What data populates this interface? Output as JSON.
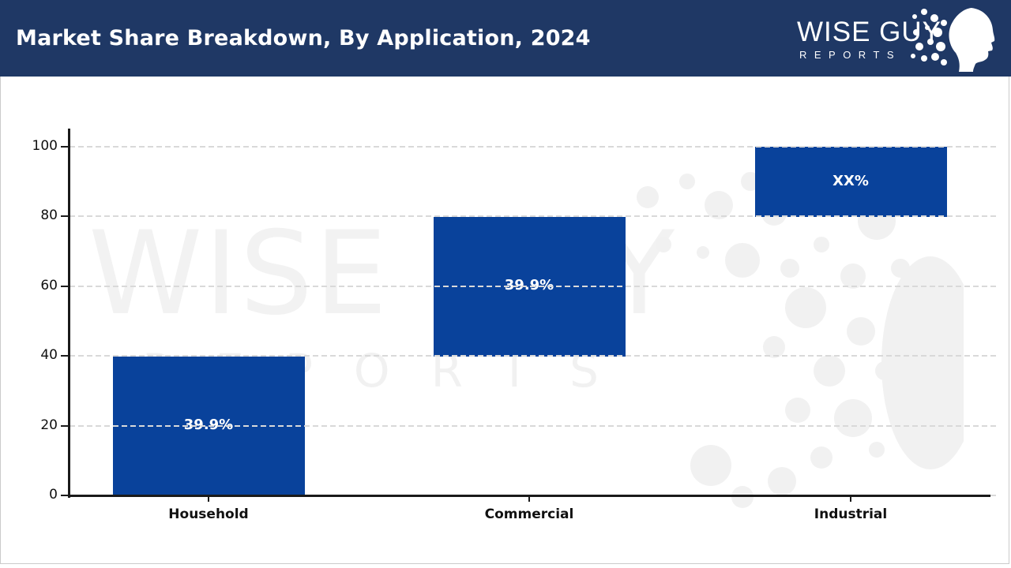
{
  "header": {
    "title": "Market Share Breakdown, By Application, 2024",
    "logo": {
      "name": "WISE GUY",
      "sub": "REPORTS"
    }
  },
  "watermark": {
    "big": "WISE GUY",
    "sub": "REPORTS"
  },
  "chart_data": {
    "type": "bar",
    "variant": "floating-stacked-percent",
    "title": "Market Share Breakdown, By Application, 2024",
    "categories": [
      "Household",
      "Commercial",
      "Industrial"
    ],
    "bars": [
      {
        "category": "Household",
        "start": 0,
        "end": 39.9,
        "label": "39.9%"
      },
      {
        "category": "Commercial",
        "start": 39.9,
        "end": 79.8,
        "label": "39.9%"
      },
      {
        "category": "Industrial",
        "start": 79.8,
        "end": 100,
        "label": "XX%"
      }
    ],
    "xlabel": "",
    "ylabel": "",
    "yticks": [
      0,
      20,
      40,
      60,
      80,
      100
    ],
    "ylim": [
      0,
      105
    ],
    "grid": "dashed-horizontal",
    "legend": "none",
    "bar_color": "#09429B"
  },
  "colors": {
    "header_bg": "#1F3865",
    "bar": "#09429B",
    "axis": "#1A1A1A",
    "gridline": "#D9D9D9",
    "watermark": "#F2F2F2",
    "card_border": "#CBCBCB",
    "label_on_bar": "#FFFFFF"
  }
}
